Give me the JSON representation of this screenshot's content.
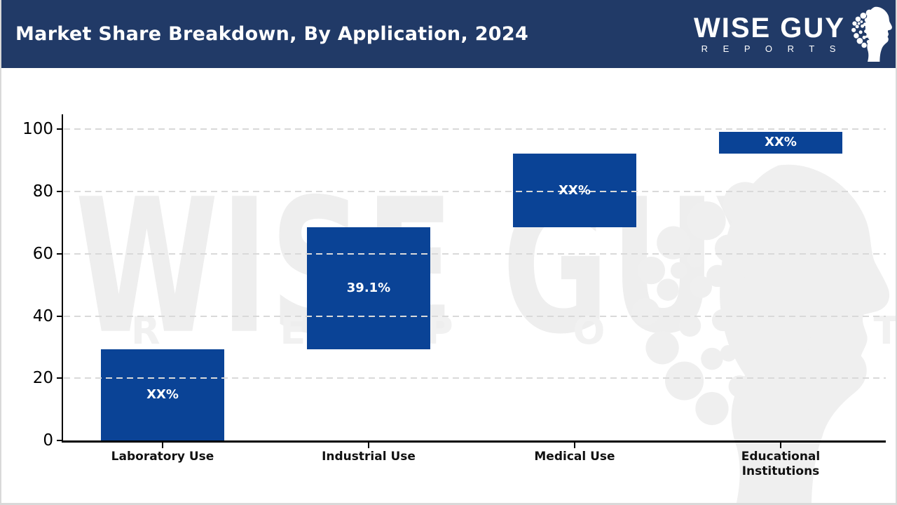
{
  "header": {
    "title": "Market Share Breakdown, By Application, 2024",
    "logo": {
      "brand": "WISE GUY",
      "sub": "R E P O R T S"
    }
  },
  "watermark": {
    "line1": "WISE GUY",
    "line2": "R E P O R T S"
  },
  "chart_data": {
    "type": "bar",
    "variant": "waterfall",
    "title": "Market Share Breakdown, By Application, 2024",
    "xlabel": "",
    "ylabel": "",
    "categories": [
      "Laboratory Use",
      "Industrial Use",
      "Medical Use",
      "Educational Institutions"
    ],
    "segments": [
      {
        "category": "Laboratory Use",
        "start": 0,
        "end": 29.3,
        "label": "XX%"
      },
      {
        "category": "Industrial Use",
        "start": 29.3,
        "end": 68.4,
        "label": "39.1%"
      },
      {
        "category": "Medical Use",
        "start": 68.4,
        "end": 92.2,
        "label": "XX%"
      },
      {
        "category": "Educational Institutions",
        "start": 92.2,
        "end": 99.2,
        "label": "XX%"
      }
    ],
    "yticks": [
      0,
      20,
      40,
      60,
      80,
      100
    ],
    "ylim": [
      0,
      105
    ],
    "grid": "horizontal-dashed",
    "legend": "none",
    "bar_color": "#0a4396",
    "bar_label_color": "#ffffff"
  },
  "colors": {
    "header_bg": "#213a67",
    "axis": "#000000",
    "grid": "#d9d9d9",
    "watermark": "#efefef",
    "page_border": "#d9d9d9"
  }
}
